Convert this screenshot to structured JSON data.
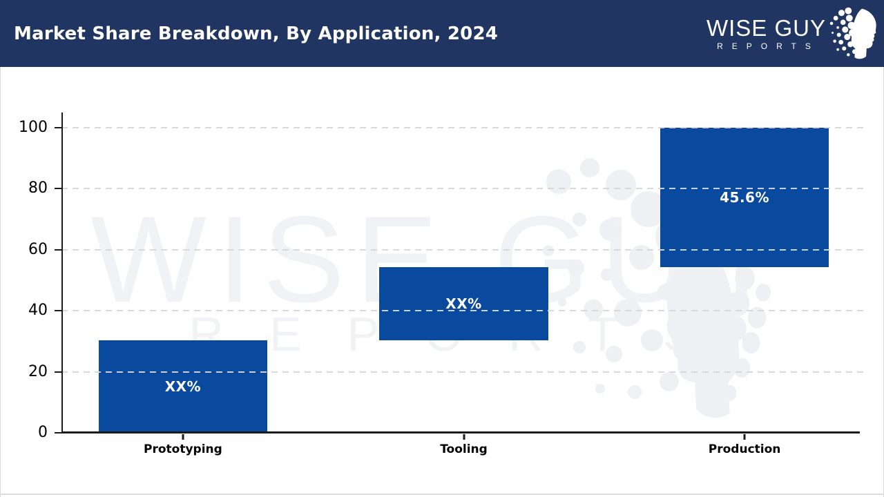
{
  "header": {
    "title": "Market Share Breakdown, By Application, 2024",
    "brand": {
      "line1": "WISE GUY",
      "line2": "REPORTS"
    }
  },
  "watermark": {
    "line1": "WISE GUY",
    "line2": "REPORTS"
  },
  "colors": {
    "header_background": "#203561",
    "bar_fill": "#0a4a9e",
    "grid_line": "#d7d7d7",
    "watermark": "#f1f2f5",
    "axis_text": "#000000",
    "bar_label_text": "#ffffff"
  },
  "chart_data": {
    "type": "bar",
    "subtype": "waterfall-floating-bars",
    "title": "Market Share Breakdown, By Application, 2024",
    "categories": [
      "Prototyping",
      "Tooling",
      "Production"
    ],
    "bars": [
      {
        "category": "Prototyping",
        "start": 0,
        "end": 30.4,
        "label": "XX%"
      },
      {
        "category": "Tooling",
        "start": 30.4,
        "end": 54.4,
        "label": "XX%"
      },
      {
        "category": "Production",
        "start": 54.4,
        "end": 100,
        "label": "45.6%"
      }
    ],
    "yticks": [
      0,
      20,
      40,
      60,
      80,
      100
    ],
    "ylim": [
      0,
      105
    ],
    "xlabel": "",
    "ylabel": "",
    "grid": "horizontal dashed, drawn over bars",
    "legend": "none"
  }
}
